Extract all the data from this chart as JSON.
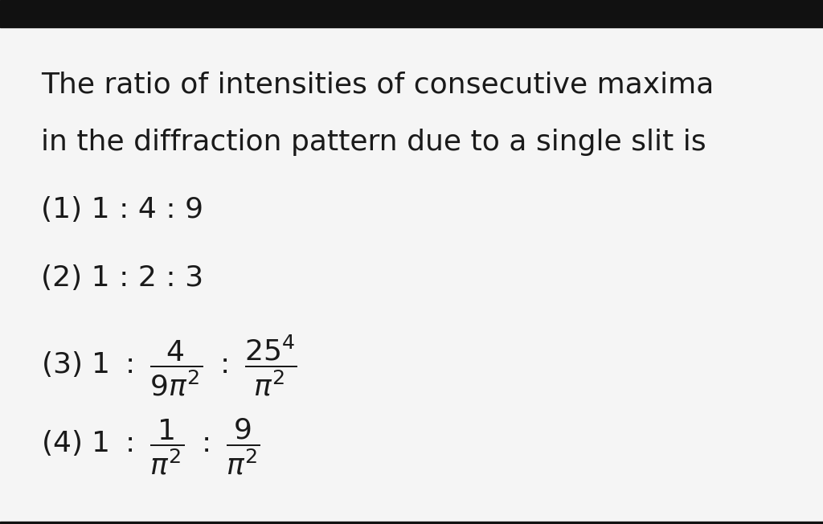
{
  "background_color": "#f5f5f5",
  "top_bar_color": "#111111",
  "text_color": "#1a1a1a",
  "title_line1": "The ratio of intensities of consecutive maxima",
  "title_line2": "in the diffraction pattern due to a single slit is",
  "option1_text": "(1) 1 : 4 : 9",
  "option2_text": "(2) 1 : 2 : 3",
  "title_fontsize": 26,
  "option_fontsize": 26,
  "fig_width": 10.24,
  "fig_height": 6.52
}
